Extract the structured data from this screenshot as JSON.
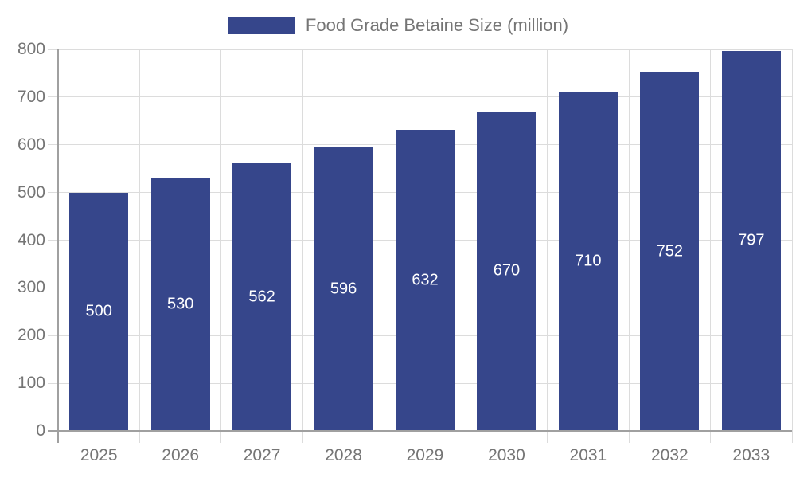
{
  "legend": {
    "label": "Food Grade Betaine Size (million)"
  },
  "colors": {
    "bar": "#36468B",
    "bar_label": "#ffffff",
    "grid_line": "#dcdcdc",
    "axis_line": "#a0a0a0",
    "tick_text": "#757575",
    "legend_text": "#757575",
    "background": "#ffffff"
  },
  "chart_data": {
    "type": "bar",
    "title": "",
    "series_name": "Food Grade Betaine Size (million)",
    "categories": [
      "2025",
      "2026",
      "2027",
      "2028",
      "2029",
      "2030",
      "2031",
      "2032",
      "2033"
    ],
    "values": [
      500,
      530,
      562,
      596,
      632,
      670,
      710,
      752,
      797
    ],
    "xlabel": "",
    "ylabel": "",
    "ylim": [
      0,
      800
    ],
    "yticks": [
      0,
      100,
      200,
      300,
      400,
      500,
      600,
      700,
      800
    ],
    "grid": true,
    "legend_position": "top-center",
    "bar_label_position": "inside-center"
  }
}
